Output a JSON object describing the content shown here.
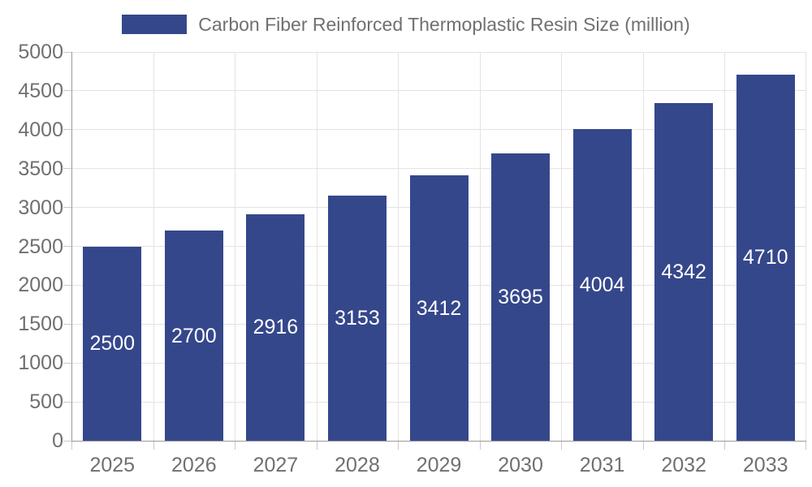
{
  "chart_data": {
    "type": "bar",
    "title": "",
    "series_name": "Carbon Fiber Reinforced Thermoplastic Resin Size (million)",
    "categories": [
      "2025",
      "2026",
      "2027",
      "2028",
      "2029",
      "2030",
      "2031",
      "2032",
      "2033"
    ],
    "values": [
      2500,
      2700,
      2916,
      3153,
      3412,
      3695,
      4004,
      4342,
      4710
    ],
    "value_labels_visible": true,
    "value_label_position": "inside-center",
    "xlabel": "",
    "ylabel": "",
    "ylim": [
      0,
      5000
    ],
    "y_ticks": [
      0,
      500,
      1000,
      1500,
      2000,
      2500,
      3000,
      3500,
      4000,
      4500,
      5000
    ],
    "grid": true,
    "legend_position": "top-center",
    "colors": {
      "bar": "#35478B",
      "value_label": "#FFFFFF",
      "grid_line": "#E3E3E3",
      "axis_line": "#9B9B9B",
      "tick_mark": "#C9C9C9",
      "axis_text": "#707070",
      "legend_text": "#707070",
      "background": "#FFFFFF"
    }
  }
}
